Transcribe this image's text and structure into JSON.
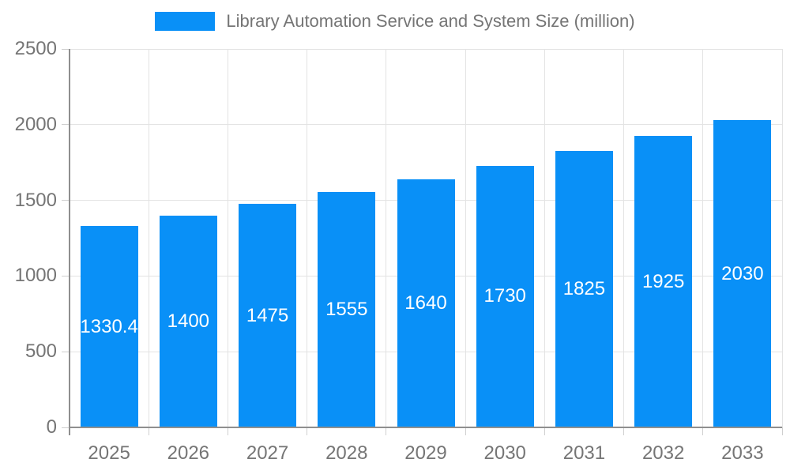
{
  "chart_data": {
    "type": "bar",
    "title": "Library Automation Service and System Size (million)",
    "categories": [
      "2025",
      "2026",
      "2027",
      "2028",
      "2029",
      "2030",
      "2031",
      "2032",
      "2033"
    ],
    "values": [
      1330.4,
      1400,
      1475,
      1555,
      1640,
      1730,
      1825,
      1925,
      2030
    ],
    "value_labels": [
      "1330.4",
      "1400",
      "1475",
      "1555",
      "1640",
      "1730",
      "1825",
      "1925",
      "2030"
    ],
    "xlabel": "",
    "ylabel": "",
    "ylim": [
      0,
      2500
    ],
    "yticks": [
      0,
      500,
      1000,
      1500,
      2000,
      2500
    ],
    "grid": true,
    "legend_position": "top-center",
    "bar_color": "#0990f7",
    "value_label_color": "#ffffff",
    "axis_text_color": "#757575",
    "gridline_color": "#e3e3e3",
    "axis_line_color": "#8f8f8f"
  }
}
